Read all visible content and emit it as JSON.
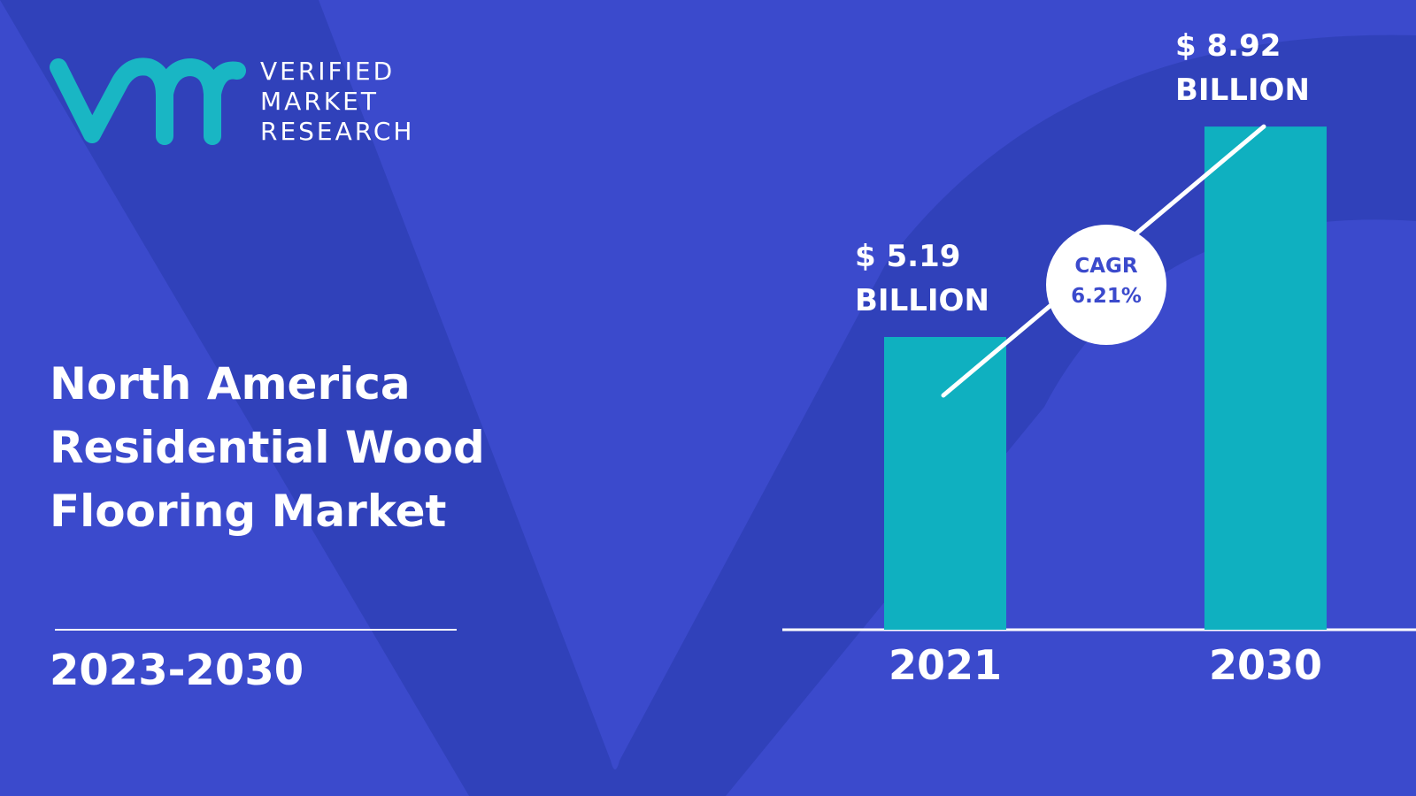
{
  "brand": {
    "line1": "VERIFIED",
    "line2": "MARKET",
    "line3": "RESEARCH",
    "logo_icon": "vmr-logo-icon"
  },
  "title": "North America\nResidential Wood\nFlooring Market",
  "period": "2023-2030",
  "colors": {
    "background": "#3b4acc",
    "background_shape": "#2f3fb6",
    "bar": "#0fb0c0",
    "text": "#ffffff",
    "logo": "#19b6c4"
  },
  "chart_data": {
    "type": "bar",
    "categories": [
      "2021",
      "2030"
    ],
    "values": [
      5.19,
      8.92
    ],
    "value_labels": [
      [
        "$ 5.19",
        "BILLION"
      ],
      [
        "$ 8.92",
        "BILLION"
      ]
    ],
    "unit": "BILLION",
    "annotation": {
      "line1": "CAGR",
      "line2": "6.21%"
    },
    "title": "",
    "xlabel": "",
    "ylabel": "",
    "grid": false
  }
}
